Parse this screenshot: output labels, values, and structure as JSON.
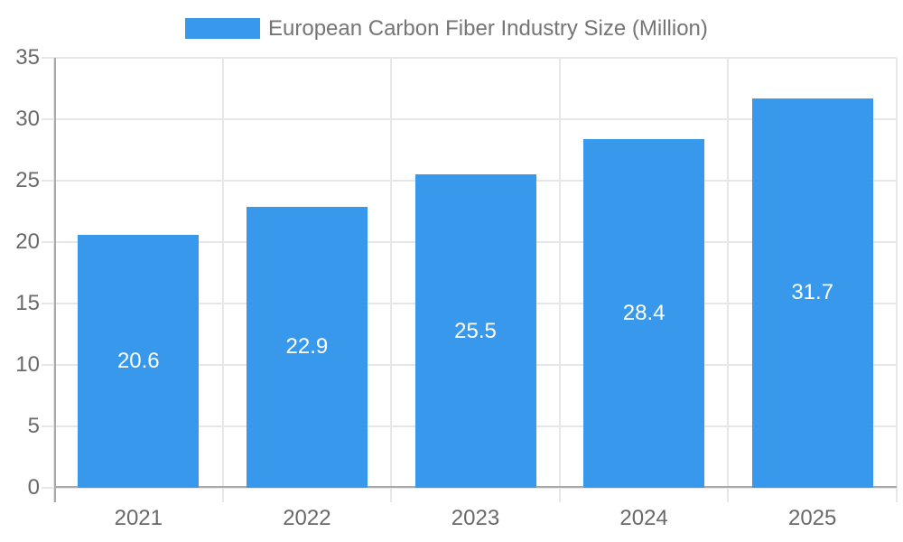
{
  "legend": {
    "label": "European Carbon Fiber Industry Size (Million)"
  },
  "chart_data": {
    "type": "bar",
    "title": "European Carbon Fiber Industry Size (Million)",
    "categories": [
      "2021",
      "2022",
      "2023",
      "2024",
      "2025"
    ],
    "values": [
      20.6,
      22.9,
      25.5,
      28.4,
      31.7
    ],
    "value_labels": [
      "20.6",
      "22.9",
      "25.5",
      "28.4",
      "31.7"
    ],
    "xlabel": "",
    "ylabel": "",
    "ylim": [
      0,
      35
    ],
    "yticks": [
      0,
      5,
      10,
      15,
      20,
      25,
      30,
      35
    ],
    "grid": true,
    "legend_position": "top",
    "colors": {
      "bar": "#3899EC",
      "value_label": "#ffffff",
      "grid": "#E7E7E7",
      "axis": "#A9A9A9",
      "tick_text": "#696969",
      "legend_text": "#757575"
    }
  }
}
